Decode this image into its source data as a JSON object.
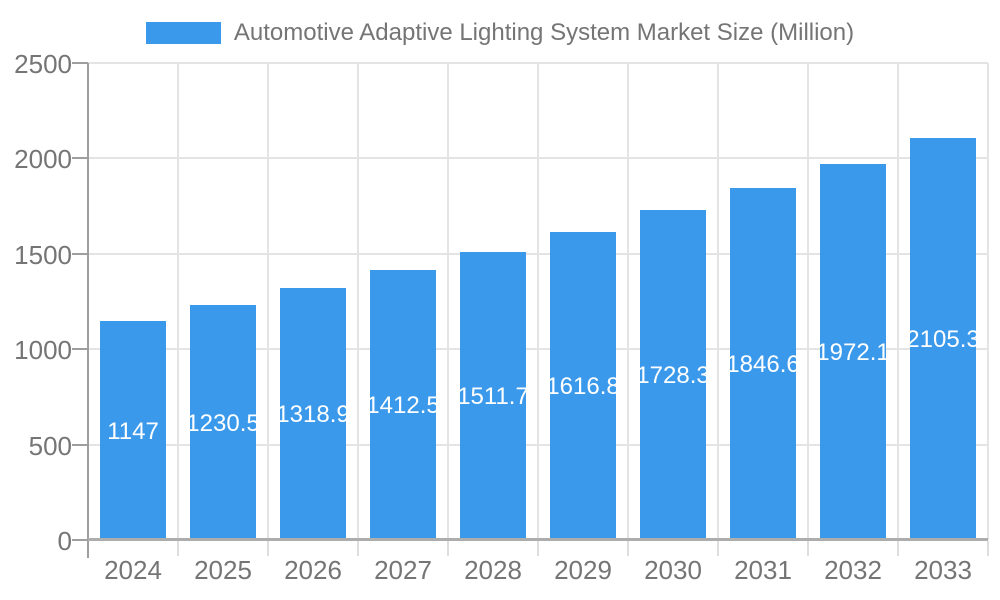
{
  "chart_data": {
    "type": "bar",
    "series_name": "Automotive Adaptive Lighting System Market Size (Million)",
    "categories": [
      "2024",
      "2025",
      "2026",
      "2027",
      "2028",
      "2029",
      "2030",
      "2031",
      "2032",
      "2033"
    ],
    "values": [
      1147,
      1230.5,
      1318.9,
      1412.5,
      1511.7,
      1616.8,
      1728.3,
      1846.6,
      1972.1,
      2105.3
    ],
    "value_labels": [
      "1147",
      "1230.5",
      "1318.9",
      "1412.5",
      "1511.7",
      "1616.8",
      "1728.3",
      "1846.6",
      "1972.1",
      "2105.3"
    ],
    "title": "",
    "xlabel": "",
    "ylabel": "",
    "ylim": [
      0,
      2500
    ],
    "yticks": [
      0,
      500,
      1000,
      1500,
      2000,
      2500
    ],
    "grid": true,
    "legend_position": "top",
    "value_label_position": "inside-center",
    "colors": {
      "bar": "#3B99EC",
      "value_label_text": "#FFFFFF",
      "axis_text": "#757575",
      "legend_text": "#757575",
      "gridline": "#E4E4E4",
      "y_axis_line": "#9E9E9E",
      "x_axis_line": "#ADADAD"
    }
  }
}
